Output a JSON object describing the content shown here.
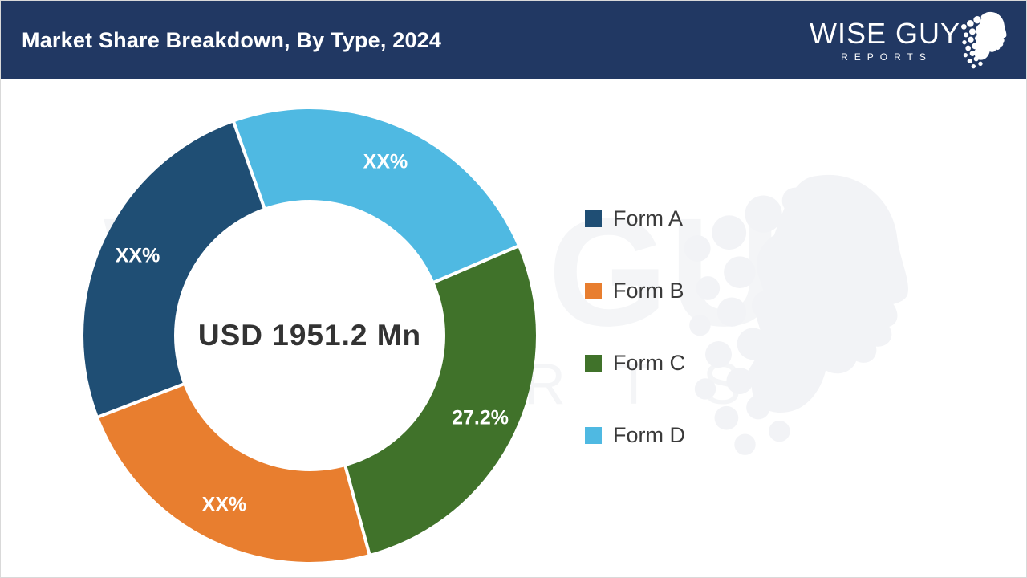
{
  "header": {
    "title": "Market Share Breakdown, By Type, 2024",
    "logo": {
      "line1": "WISE GUY",
      "line2": "REPORTS"
    }
  },
  "watermark": {
    "line1": "WISE GUY",
    "line2": "REPORTS"
  },
  "chart_data": {
    "type": "donut",
    "title": "Market Share Breakdown, By Type, 2024",
    "center_label": "USD 1951.2 Mn",
    "units": "USD Mn",
    "total_value_label": "USD 1951.2 Mn",
    "start_angle_deg": -19.6,
    "legend_position": "right",
    "segments": [
      {
        "name": "Form D",
        "display_label": "XX%",
        "value_shown": false,
        "pct_est": 24.0,
        "color": "#4FB9E2"
      },
      {
        "name": "Form C",
        "display_label": "27.2%",
        "value_shown": true,
        "pct_est": 27.2,
        "color": "#40722A"
      },
      {
        "name": "Form B",
        "display_label": "XX%",
        "value_shown": false,
        "pct_est": 23.4,
        "color": "#E87E2F"
      },
      {
        "name": "Form A",
        "display_label": "XX%",
        "value_shown": false,
        "pct_est": 25.4,
        "color": "#1F4E74"
      }
    ],
    "legend": [
      {
        "name": "Form A",
        "color": "#1F4E74"
      },
      {
        "name": "Form B",
        "color": "#E87E2F"
      },
      {
        "name": "Form C",
        "color": "#40722A"
      },
      {
        "name": "Form D",
        "color": "#4FB9E2"
      }
    ]
  },
  "colors": {
    "header_bg": "#213863",
    "page_border": "#d9d9d9",
    "center_text": "#333333",
    "legend_text": "#3a3a3a",
    "watermark": "#f2f3f6"
  }
}
